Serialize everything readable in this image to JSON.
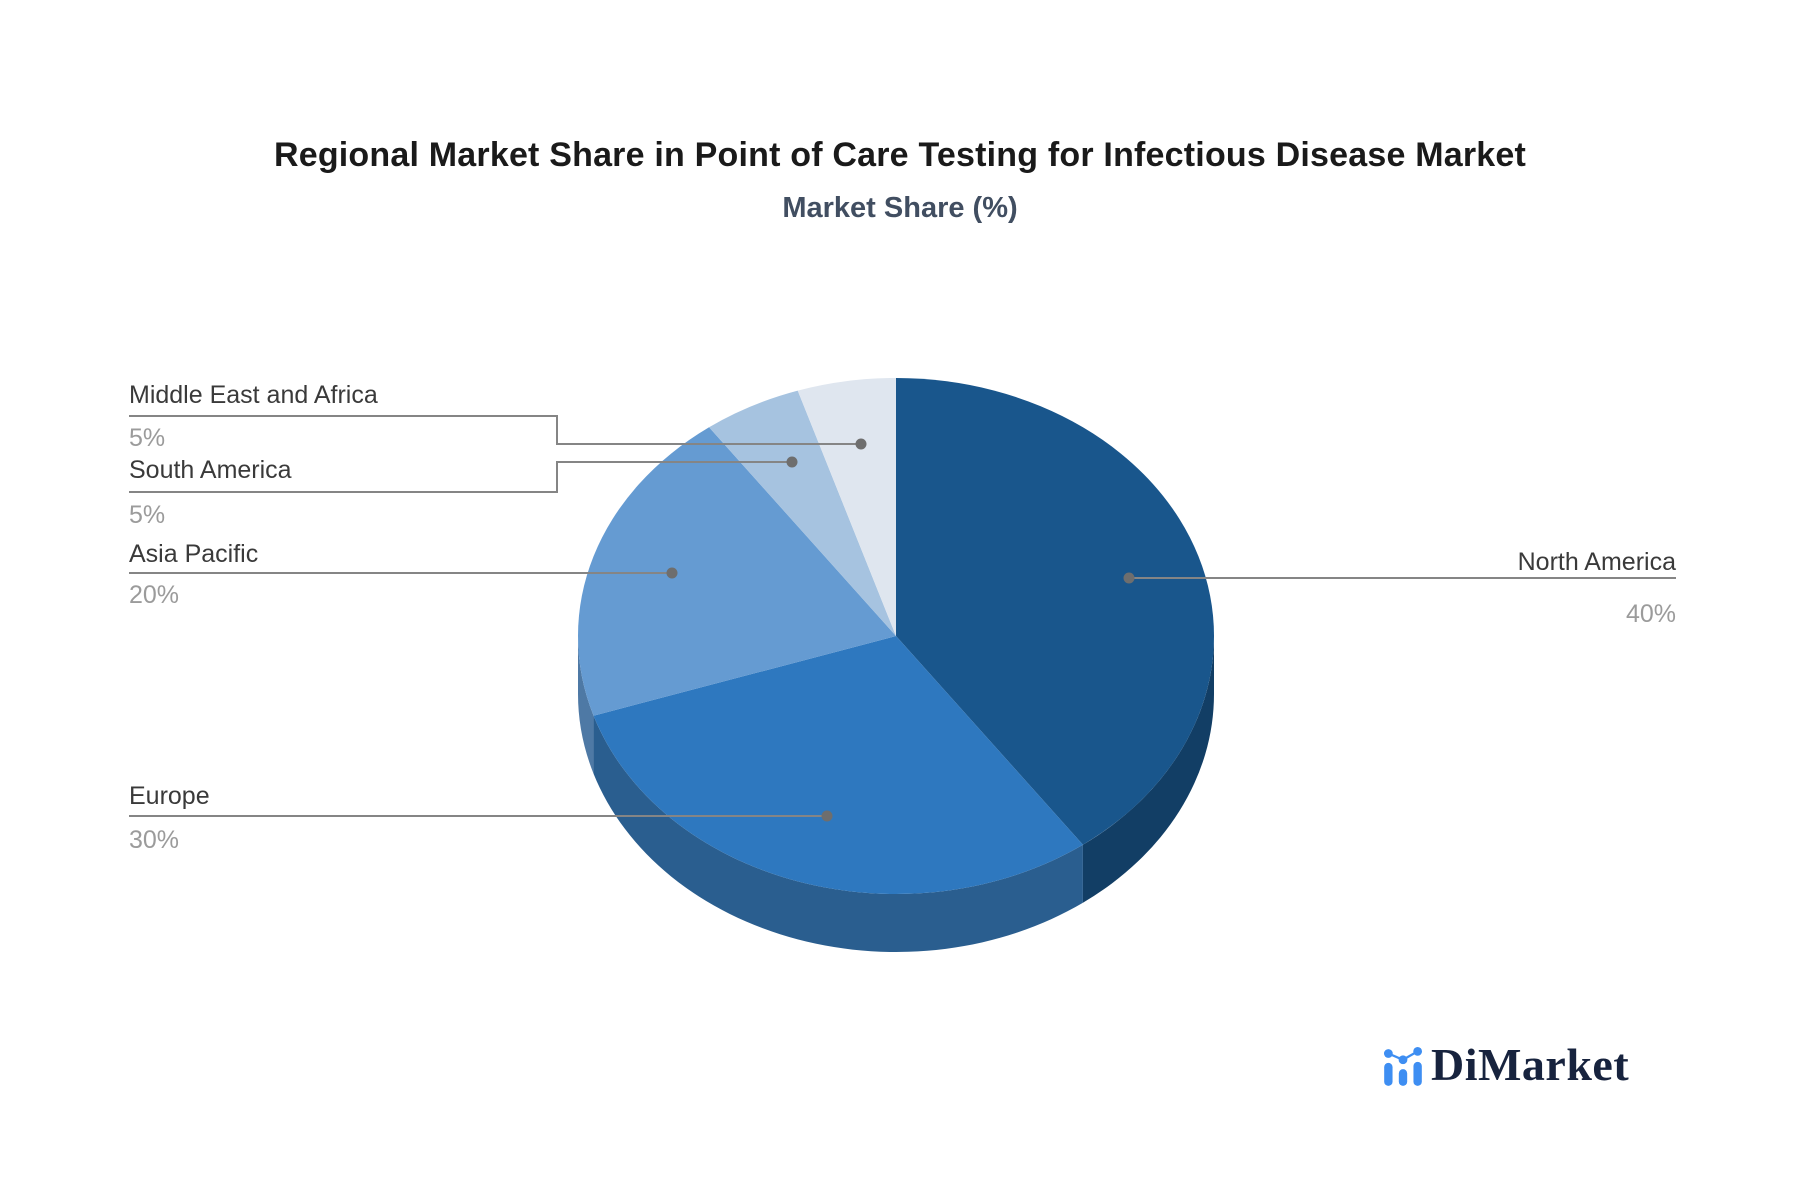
{
  "title": "Regional Market Share in Point of Care Testing for Infectious Disease Market",
  "subtitle": "Market Share (%)",
  "logo": {
    "text": "DiMarket",
    "icon": "bar-line-chart-icon",
    "icon_color": "#3e8ef2",
    "text_color": "#17233e"
  },
  "styles": {
    "leader_line_color": "#858585",
    "leader_dot_color": "#6e6e6e",
    "label_color": "#3a3a3a",
    "percent_color": "#9b9b9b",
    "background": "#ffffff"
  },
  "chart_data": {
    "type": "pie",
    "title": "Regional Market Share in Point of Care Testing for Infectious Disease Market",
    "subtitle": "Market Share (%)",
    "unit": "%",
    "effect": "3d",
    "start_angle_deg": 0,
    "direction": "clockwise",
    "slices": [
      {
        "label": "North America",
        "value": 40,
        "pct_label": "40%",
        "color": "#19568c",
        "side_color": "#123e65"
      },
      {
        "label": "Europe",
        "value": 30,
        "pct_label": "30%",
        "color": "#2e78bf",
        "side_color": "#2a5e8f"
      },
      {
        "label": "Asia Pacific",
        "value": 20,
        "pct_label": "20%",
        "color": "#659bd2",
        "side_color": "#4e79a5"
      },
      {
        "label": "South America",
        "value": 5,
        "pct_label": "5%",
        "color": "#a6c3e0",
        "side_color": "#8298af"
      },
      {
        "label": "Middle East and Africa",
        "value": 5,
        "pct_label": "5%",
        "color": "#dfe6ef",
        "side_color": "#aeb6c1"
      }
    ]
  }
}
